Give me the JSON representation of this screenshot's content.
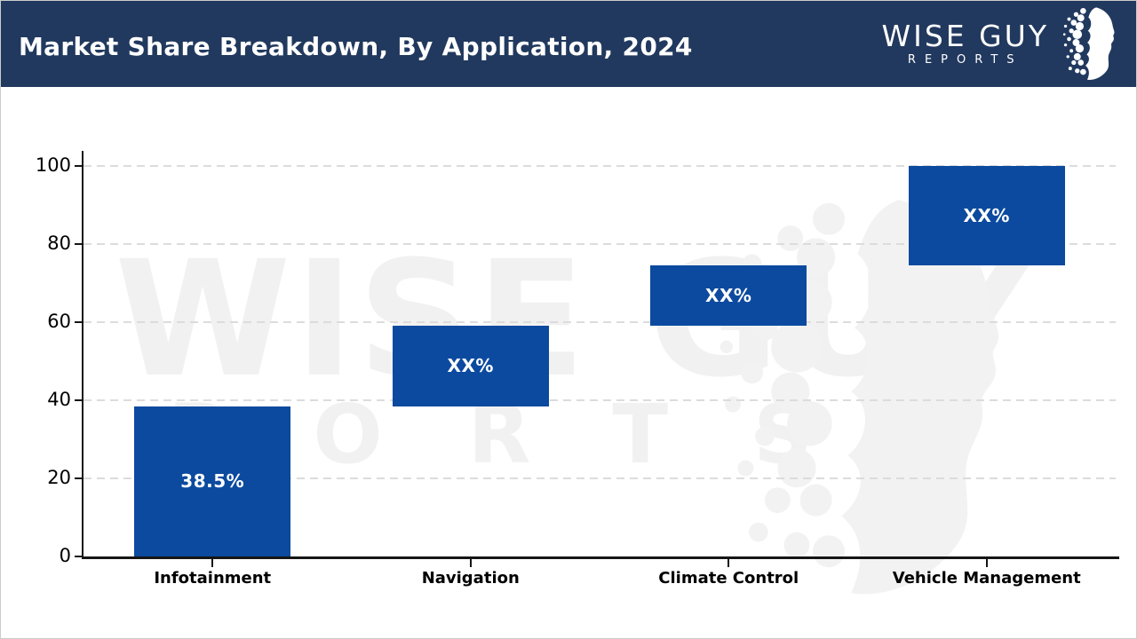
{
  "header": {
    "title": "Market Share Breakdown, By Application, 2024",
    "logo": {
      "line1": "WISE GUY",
      "line2": "REPORTS"
    }
  },
  "watermark": {
    "line1": "WISE GUY",
    "line2": "PORTS"
  },
  "chart_data": {
    "type": "bar",
    "subtype": "waterfall",
    "title": "Market Share Breakdown, By Application, 2024",
    "categories": [
      "Infotainment",
      "Navigation",
      "Climate Control",
      "Vehicle Management"
    ],
    "segments": [
      {
        "category": "Infotainment",
        "start": 0,
        "end": 38.5,
        "label": "38.5%"
      },
      {
        "category": "Navigation",
        "start": 38.5,
        "end": 59,
        "label": "XX%"
      },
      {
        "category": "Climate Control",
        "start": 59,
        "end": 74.5,
        "label": "XX%"
      },
      {
        "category": "Vehicle Management",
        "start": 74.5,
        "end": 100,
        "label": "XX%"
      }
    ],
    "xlabel": "",
    "ylabel": "",
    "ylim": [
      0,
      100
    ],
    "yticks": [
      0,
      20,
      40,
      60,
      80,
      100
    ],
    "grid": "horizontal-dashed",
    "legend": "none",
    "colors": {
      "bar": "#0B4A9F",
      "bar_label_text": "#FFFFFF",
      "gridline": "#DCDCDC",
      "axis": "#151515",
      "header_bg": "#21395E",
      "header_text": "#FFFFFF",
      "watermark": "#F1F1F1"
    }
  }
}
